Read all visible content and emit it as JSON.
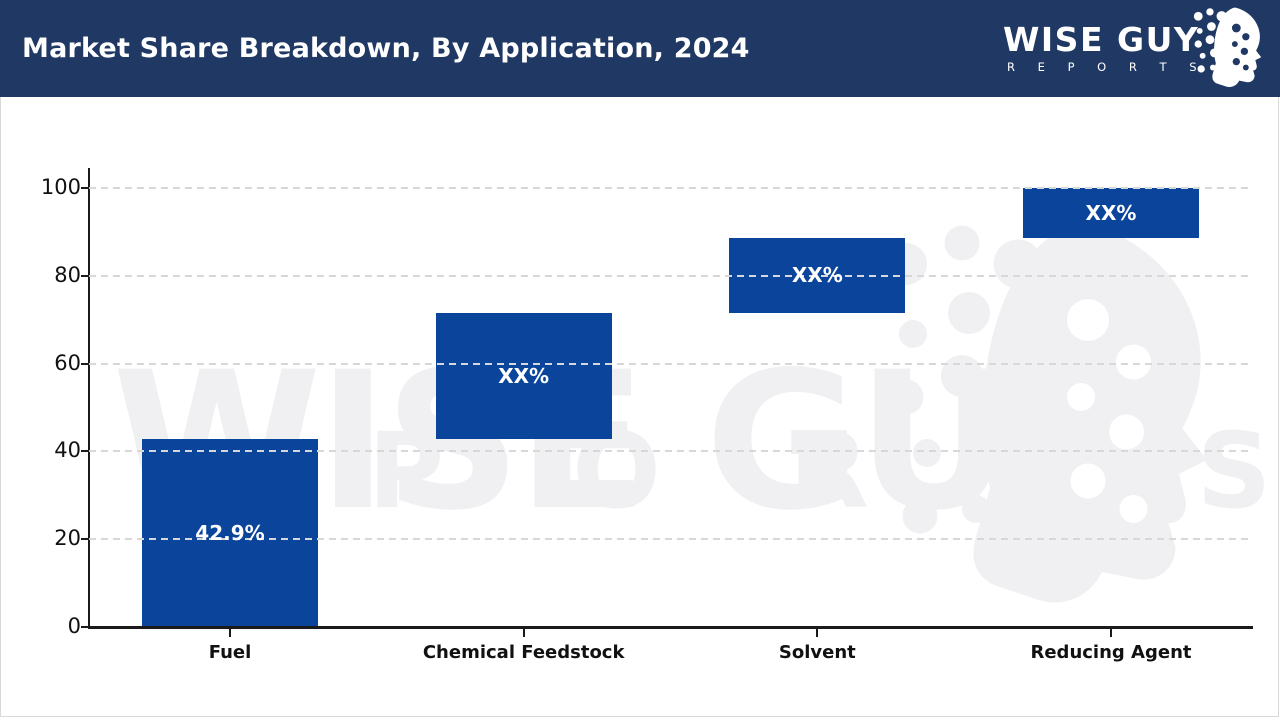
{
  "header": {
    "title": "Market Share Breakdown, By Application, 2024",
    "logo": {
      "line1": "WISE GUY",
      "line2": "R E P O R T S"
    }
  },
  "watermark": {
    "line1": "WISE GUY",
    "line2": "P O R T S"
  },
  "chart_data": {
    "type": "bar",
    "subtype": "waterfall",
    "title": "Market Share Breakdown, By Application, 2024",
    "categories": [
      "Fuel",
      "Chemical Feedstock",
      "Solvent",
      "Reducing Agent"
    ],
    "values": [
      42.9,
      28.6,
      17.2,
      11.3
    ],
    "cumulative_start": [
      0,
      42.9,
      71.5,
      88.7
    ],
    "bar_labels": [
      "42.9%",
      "XX%",
      "XX%",
      "XX%"
    ],
    "ylim": [
      0,
      100
    ],
    "yticks": [
      0,
      20,
      40,
      60,
      80,
      100
    ],
    "grid": "horizontal dashed, drawn over bars",
    "legend": "none",
    "bar_color": "#0a449b",
    "bar_label_color": "#ffffff",
    "colors": {
      "header_bg": "#1f3864",
      "grid": "#d8d8d8",
      "axis": "#1a1a1a",
      "watermark": "#f0f0f2",
      "frame_border": "#d9d9d9"
    }
  }
}
